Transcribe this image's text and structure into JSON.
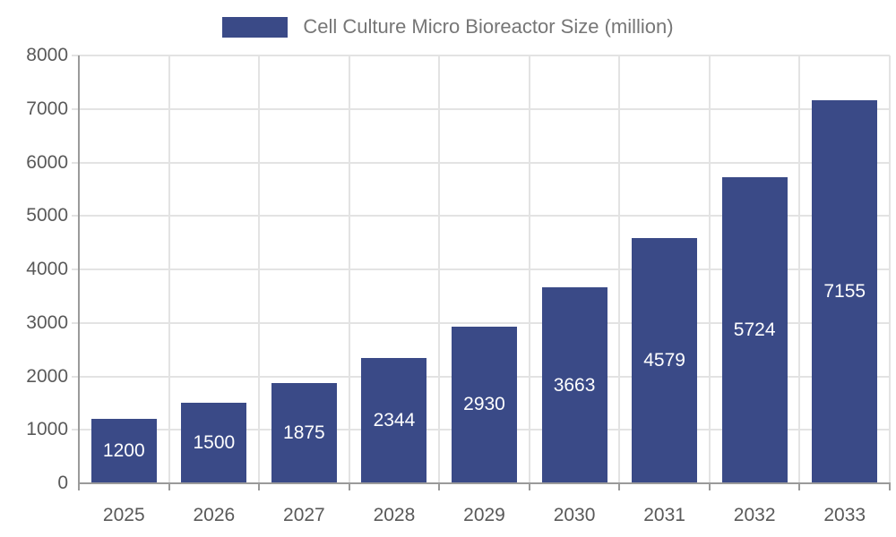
{
  "chart_data": {
    "type": "bar",
    "title": "Cell Culture Micro Bioreactor Size (million)",
    "legend_entries": [
      "Cell Culture Micro Bioreactor Size (million)"
    ],
    "legend_position": "top-center",
    "categories": [
      "2025",
      "2026",
      "2027",
      "2028",
      "2029",
      "2030",
      "2031",
      "2032",
      "2033"
    ],
    "values": [
      1200,
      1500,
      1875,
      2344,
      2930,
      3663,
      4579,
      5724,
      7155
    ],
    "value_labels": [
      "1200",
      "1500",
      "1875",
      "2344",
      "2930",
      "3663",
      "4579",
      "5724",
      "7155"
    ],
    "xlabel": "",
    "ylabel": "",
    "ylim": [
      0,
      8000
    ],
    "ytick_interval": 1000,
    "ytick_labels": [
      "0",
      "1000",
      "2000",
      "3000",
      "4000",
      "5000",
      "6000",
      "7000",
      "8000"
    ],
    "grid": true
  },
  "colors": {
    "bar": "#3a4a87",
    "bar_value_text": "#ffffff",
    "grid_line": "#e3e3e3",
    "axis_line": "#9a9a9a",
    "x_tick": "#9a9a9a",
    "y_tick": "#e3e3e3",
    "tick_label": "#595959",
    "legend_text": "#767676",
    "background": "#ffffff"
  }
}
